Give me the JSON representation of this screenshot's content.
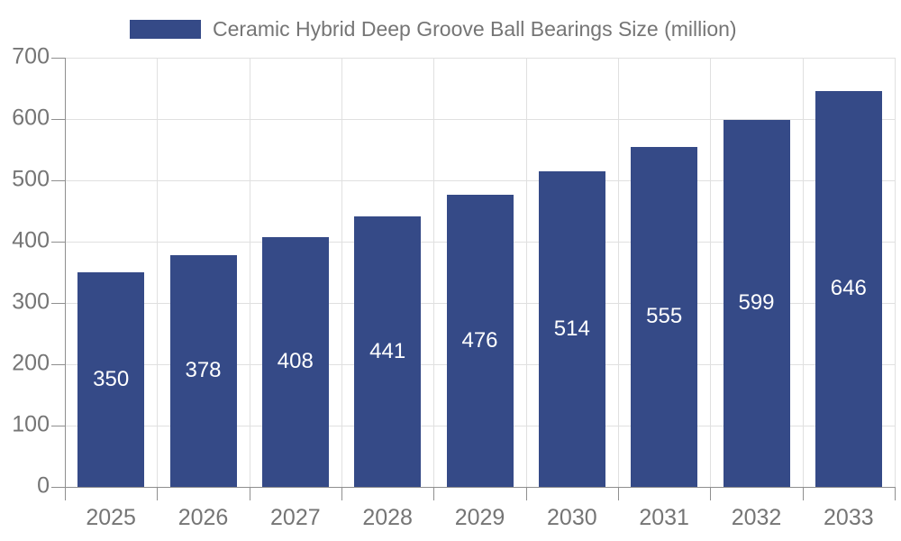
{
  "chart_data": {
    "type": "bar",
    "title": "Ceramic Hybrid Deep Groove Ball Bearings Size (million)",
    "categories": [
      "2025",
      "2026",
      "2027",
      "2028",
      "2029",
      "2030",
      "2031",
      "2032",
      "2033"
    ],
    "values": [
      350,
      378,
      408,
      441,
      476,
      514,
      555,
      599,
      646
    ],
    "value_labels": [
      "350",
      "378",
      "408",
      "441",
      "476",
      "514",
      "555",
      "599",
      "646"
    ],
    "xlabel": "",
    "ylabel": "",
    "ylim": [
      0,
      700
    ],
    "ytick_step": 100,
    "ytick_labels": [
      "0",
      "100",
      "200",
      "300",
      "400",
      "500",
      "600",
      "700"
    ],
    "grid": true,
    "legend_position": "top-center",
    "colors": {
      "bar": "#354a87",
      "value_label": "#ffffff",
      "axis_text": "#757575",
      "title_text": "#757575",
      "grid_line": "#e0e0e0",
      "axis_line": "#8f8f8f"
    }
  }
}
